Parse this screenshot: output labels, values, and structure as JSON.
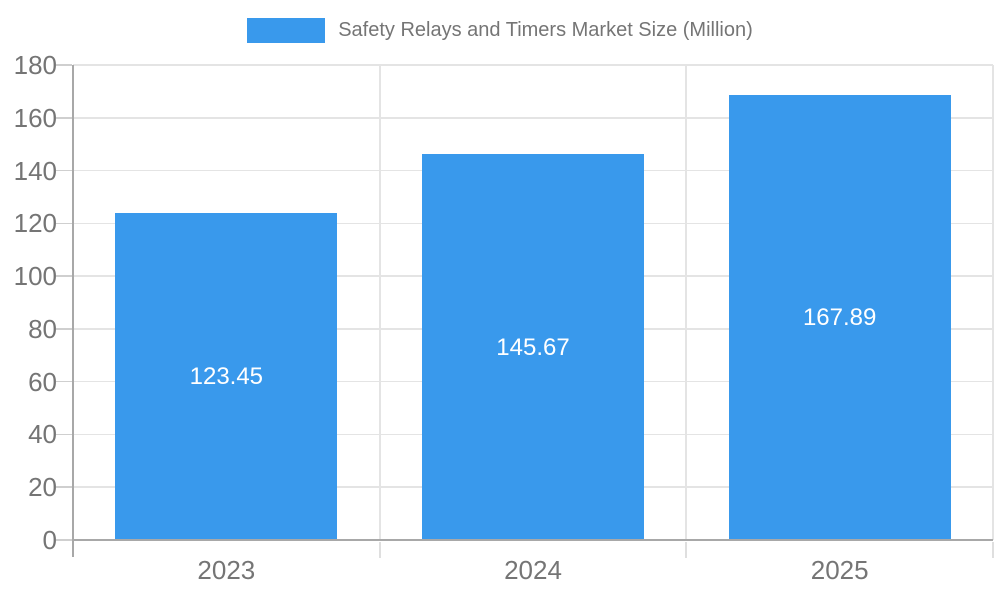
{
  "chart_data": {
    "type": "bar",
    "title": "Safety Relays and Timers Market Size (Million)",
    "legend_entries": [
      "Safety Relays and Timers Market Size (Million)"
    ],
    "legend_position": "top-center",
    "categories": [
      "2023",
      "2024",
      "2025"
    ],
    "values": [
      123.45,
      145.67,
      167.89
    ],
    "value_labels": [
      "123.45",
      "145.67",
      "167.89"
    ],
    "xlabel": "",
    "ylabel": "",
    "ylim": [
      0,
      180
    ],
    "ytick_step": 20,
    "ytick_labels": [
      "0",
      "20",
      "40",
      "60",
      "80",
      "100",
      "120",
      "140",
      "160",
      "180"
    ],
    "grid": true,
    "value_labels_position": "center-of-bar"
  },
  "colors": {
    "bar_blue": "#3999ec",
    "text_gray": "#757575",
    "gridline": "#e4e4e4",
    "axis_line": "#a8a8a8",
    "y_tick": "#cfcfcf",
    "x_tick": "#dfdfdf",
    "bar_value_text": "#ffffff",
    "background": "#ffffff"
  }
}
